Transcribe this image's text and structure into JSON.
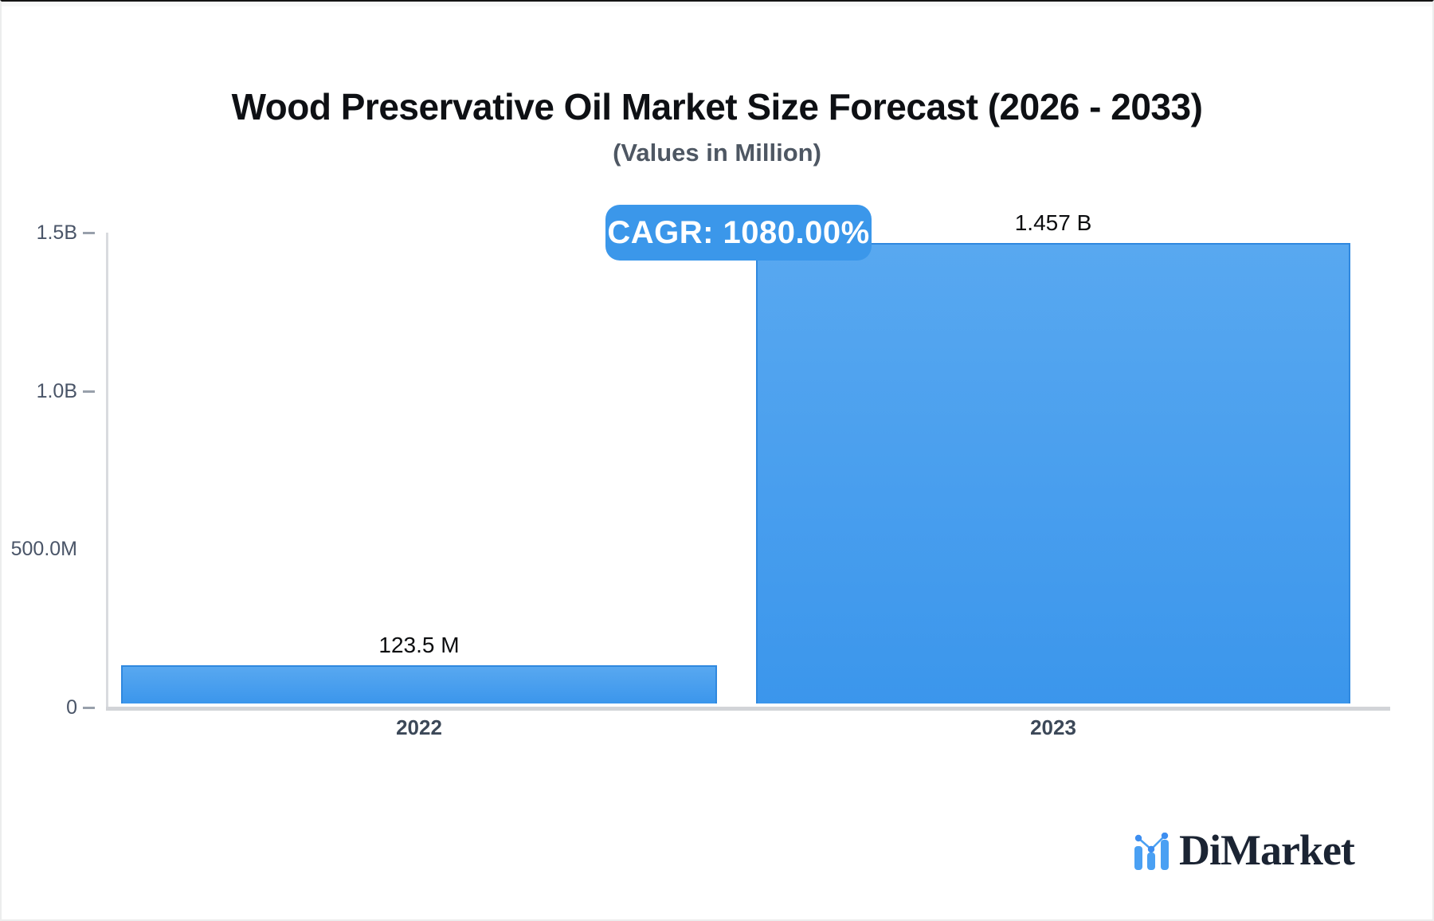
{
  "chart_data": {
    "type": "bar",
    "title": "Wood Preservative Oil Market Size Forecast (2026 - 2033)",
    "subtitle": "(Values in Million)",
    "unit": "Million",
    "categories": [
      "2022",
      "2023"
    ],
    "values": [
      123.5,
      1457
    ],
    "bar_labels": [
      "123.5 M",
      "1.457 B"
    ],
    "cagr_label": "CAGR: 1080.00%",
    "ylim": [
      0,
      1500
    ],
    "yticks": [
      {
        "label": "1.5B",
        "value": 1500,
        "dash": true
      },
      {
        "label": "1.0B",
        "value": 1000,
        "dash": true
      },
      {
        "label": "500.0M",
        "value": 500,
        "dash": false
      },
      {
        "label": "0",
        "value": 0,
        "dash": true
      }
    ],
    "grid": false,
    "legend": false
  },
  "colors": {
    "bar_top": "#58a8f0",
    "bar_bottom": "#3b96ec",
    "bar_border": "#2f88df",
    "badge_bg": "#3b97ea",
    "badge_text": "#ffffff",
    "axis_line": "#d9dbdf",
    "baseline": "#d2d4d8",
    "tick_text": "#4a5568",
    "logo_blue": "#4aa0f3",
    "logo_navy": "#1b2433"
  },
  "logo": {
    "text": "DiMarket"
  }
}
